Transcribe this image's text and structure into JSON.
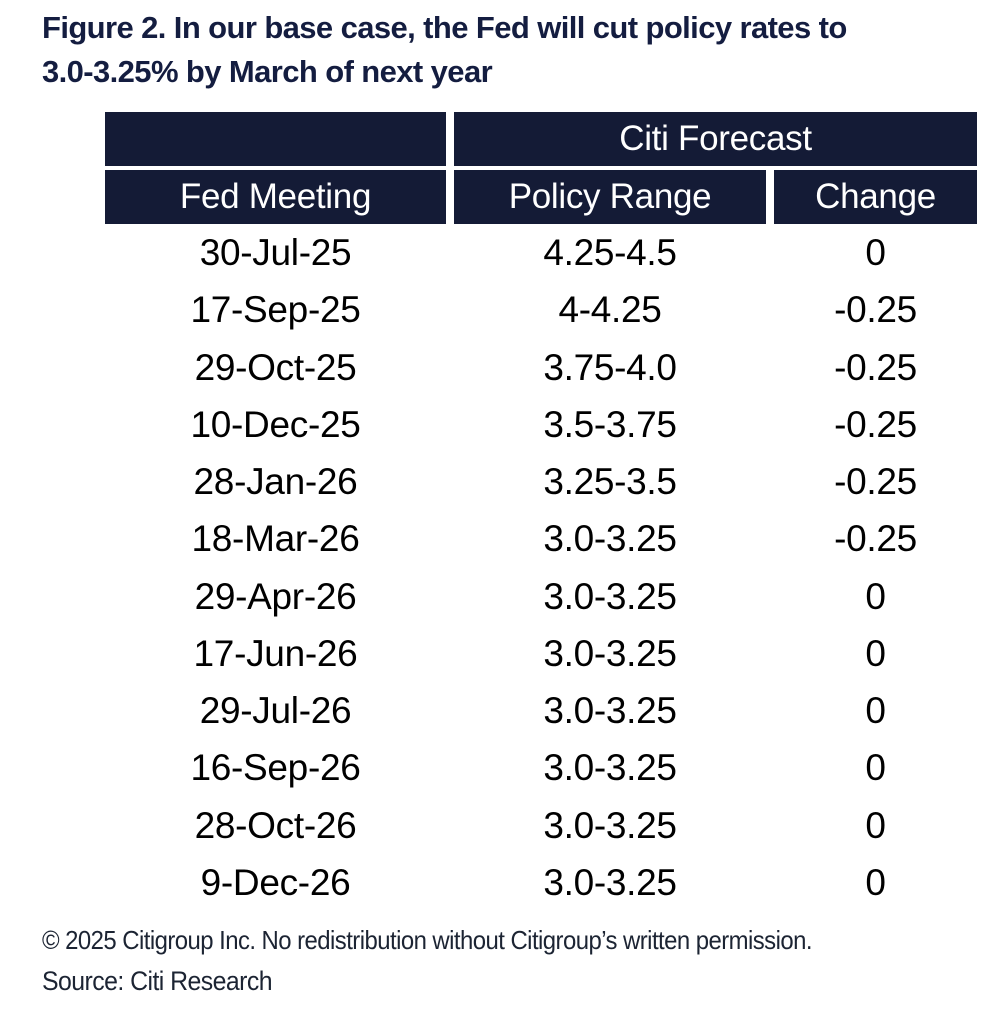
{
  "figure": {
    "title": "Figure 2. In our base case, the Fed will cut policy rates to 3.0-3.25% by March of next year",
    "title_lines": {
      "line1": "Figure 2. In our base case, the Fed will cut policy rates to",
      "line2": "3.0-3.25% by March of next year"
    }
  },
  "table": {
    "group_header": "Citi Forecast",
    "columns": {
      "meeting": "Fed Meeting",
      "policy_range": "Policy Range",
      "change": "Change"
    },
    "rows": [
      {
        "meeting": "30-Jul-25",
        "policy_range": "4.25-4.5",
        "change": "0"
      },
      {
        "meeting": "17-Sep-25",
        "policy_range": "4-4.25",
        "change": "-0.25"
      },
      {
        "meeting": "29-Oct-25",
        "policy_range": "3.75-4.0",
        "change": "-0.25"
      },
      {
        "meeting": "10-Dec-25",
        "policy_range": "3.5-3.75",
        "change": "-0.25"
      },
      {
        "meeting": "28-Jan-26",
        "policy_range": "3.25-3.5",
        "change": "-0.25"
      },
      {
        "meeting": "18-Mar-26",
        "policy_range": "3.0-3.25",
        "change": "-0.25"
      },
      {
        "meeting": "29-Apr-26",
        "policy_range": "3.0-3.25",
        "change": "0"
      },
      {
        "meeting": "17-Jun-26",
        "policy_range": "3.0-3.25",
        "change": "0"
      },
      {
        "meeting": "29-Jul-26",
        "policy_range": "3.0-3.25",
        "change": "0"
      },
      {
        "meeting": "16-Sep-26",
        "policy_range": "3.0-3.25",
        "change": "0"
      },
      {
        "meeting": "28-Oct-26",
        "policy_range": "3.0-3.25",
        "change": "0"
      },
      {
        "meeting": "9-Dec-26",
        "policy_range": "3.0-3.25",
        "change": "0"
      }
    ]
  },
  "footer": {
    "copyright": "© 2025 Citigroup Inc. No redistribution without Citigroup’s written permission.",
    "source": "Source: Citi Research"
  },
  "colors": {
    "header_bg": "#141b36",
    "header_text": "#ffffff",
    "title_text": "#141d40",
    "data_text": "#000000",
    "footer_text": "#1c2433",
    "background": "#ffffff"
  },
  "chart_data": {
    "type": "table",
    "title": "Figure 2. In our base case, the Fed will cut policy rates to 3.0-3.25% by March of next year",
    "group_header": "Citi Forecast (spans Policy Range and Change columns)",
    "columns": [
      "Fed Meeting",
      "Policy Range",
      "Change"
    ],
    "rows": [
      [
        "30-Jul-25",
        "4.25-4.5",
        "0"
      ],
      [
        "17-Sep-25",
        "4-4.25",
        "-0.25"
      ],
      [
        "29-Oct-25",
        "3.75-4.0",
        "-0.25"
      ],
      [
        "10-Dec-25",
        "3.5-3.75",
        "-0.25"
      ],
      [
        "28-Jan-26",
        "3.25-3.5",
        "-0.25"
      ],
      [
        "18-Mar-26",
        "3.0-3.25",
        "-0.25"
      ],
      [
        "29-Apr-26",
        "3.0-3.25",
        "0"
      ],
      [
        "17-Jun-26",
        "3.0-3.25",
        "0"
      ],
      [
        "29-Jul-26",
        "3.0-3.25",
        "0"
      ],
      [
        "16-Sep-26",
        "3.0-3.25",
        "0"
      ],
      [
        "28-Oct-26",
        "3.0-3.25",
        "0"
      ],
      [
        "9-Dec-26",
        "3.0-3.25",
        "0"
      ]
    ],
    "source": "Source: Citi Research"
  }
}
